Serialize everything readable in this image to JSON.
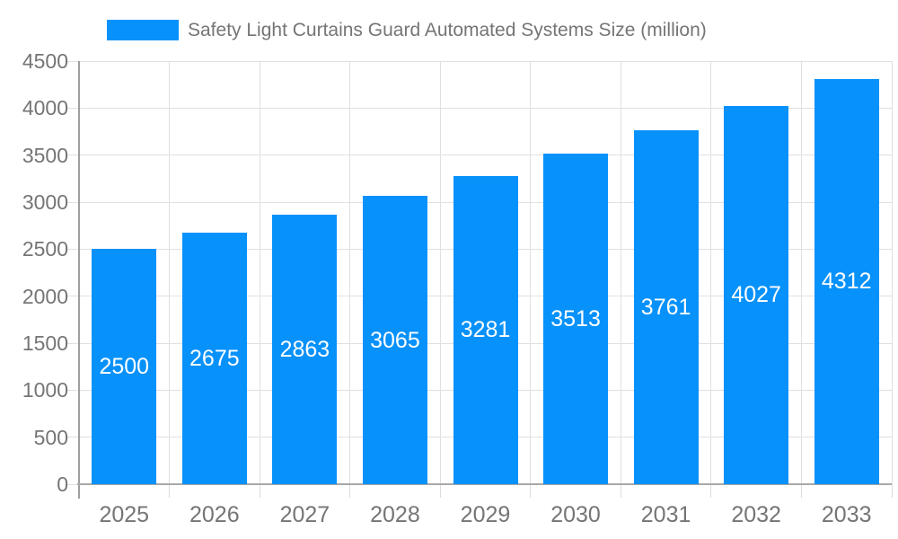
{
  "legend": {
    "label": "Safety Light Curtains Guard Automated Systems Size (million)",
    "swatch_color": "#0791fa"
  },
  "chart_data": {
    "type": "bar",
    "title": "Safety Light Curtains Guard Automated Systems Size (million)",
    "categories": [
      "2025",
      "2026",
      "2027",
      "2028",
      "2029",
      "2030",
      "2031",
      "2032",
      "2033"
    ],
    "values": [
      2500,
      2675,
      2863,
      3065,
      3281,
      3513,
      3761,
      4027,
      4312
    ],
    "xlabel": "",
    "ylabel": "",
    "ylim": [
      0,
      4500
    ],
    "yticks": [
      0,
      500,
      1000,
      1500,
      2000,
      2500,
      3000,
      3500,
      4000,
      4500
    ],
    "grid": true,
    "legend_position": "top-center",
    "bar_color": "#0791fa",
    "value_label_color": "#ffffff",
    "axis_text_color": "#757575",
    "gridline_color": "#e0e0e0",
    "axis_line_color": "#9e9e9e"
  }
}
